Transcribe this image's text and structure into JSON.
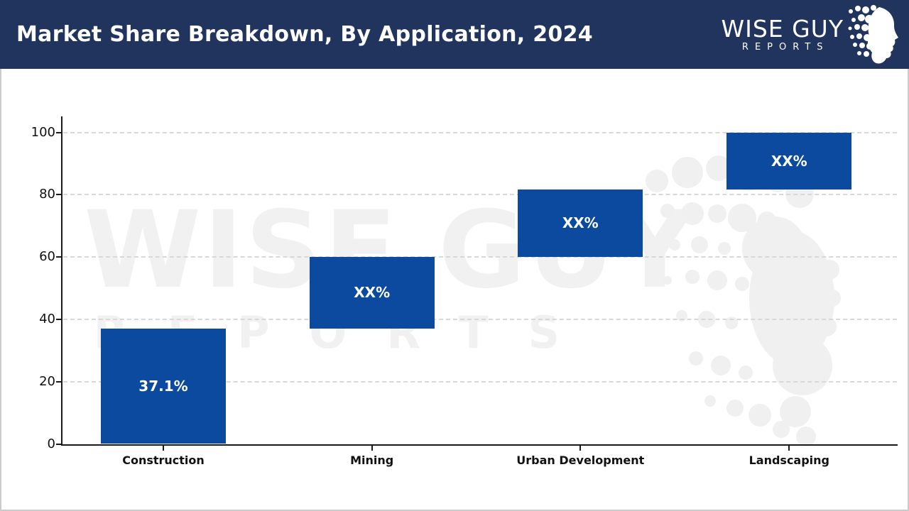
{
  "header": {
    "title": "Market Share Breakdown, By Application, 2024",
    "logo": {
      "wordmark": "WISE GUY",
      "subtext": "REPORTS"
    }
  },
  "watermark": {
    "line1": "WISE GUY",
    "line2": "REPORTS"
  },
  "chart_data": {
    "type": "bar",
    "subtype": "waterfall",
    "title": "Market Share Breakdown, By Application, 2024",
    "categories": [
      "Construction",
      "Mining",
      "Urban Development",
      "Landscaping"
    ],
    "segments": [
      {
        "category": "Construction",
        "start": 0,
        "end": 37.1,
        "label": "37.1%"
      },
      {
        "category": "Mining",
        "start": 37.1,
        "end": 60,
        "label": "XX%"
      },
      {
        "category": "Urban Development",
        "start": 60,
        "end": 81.7,
        "label": "XX%"
      },
      {
        "category": "Landscaping",
        "start": 81.7,
        "end": 100,
        "label": "XX%"
      }
    ],
    "bar_labels": [
      "37.1%",
      "XX%",
      "XX%",
      "XX%"
    ],
    "yticks": [
      0,
      20,
      40,
      60,
      80,
      100
    ],
    "ylim": [
      0,
      105
    ],
    "xlabel": "",
    "ylabel": "",
    "grid": "horizontal-dashed",
    "legend": null
  },
  "colors": {
    "header_bg": "#20345e",
    "bar": "#0b4a9e",
    "axis": "#1a1a1a",
    "grid": "#d8d8d8",
    "watermark": "#f1f1f1",
    "frame": "#cbcbcb"
  }
}
